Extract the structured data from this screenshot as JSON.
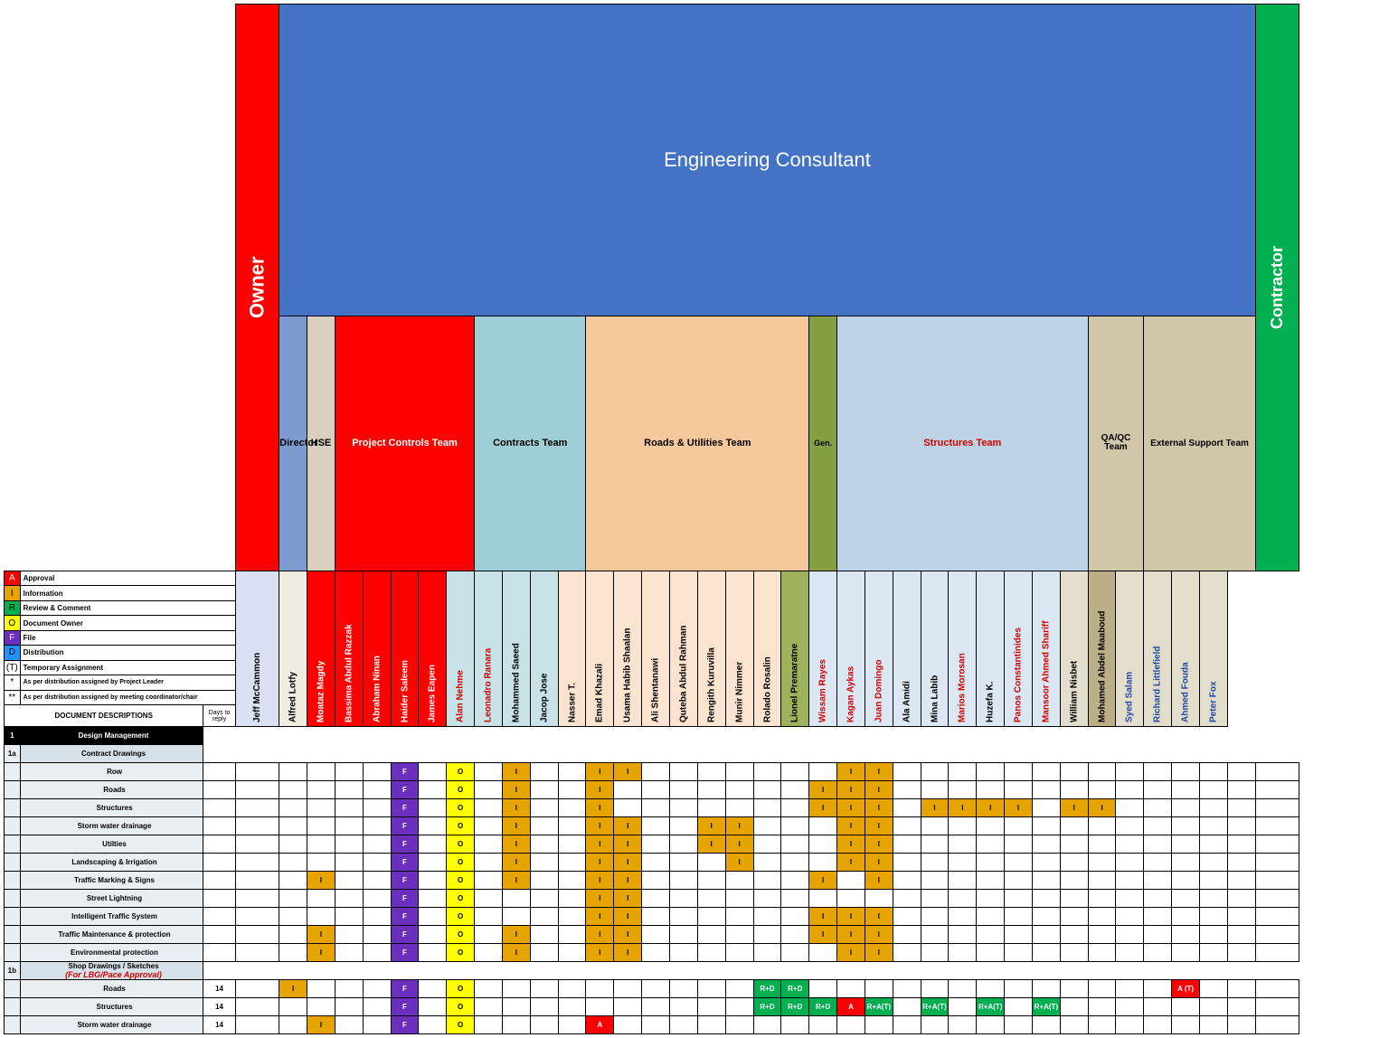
{
  "top": {
    "owner": "Owner",
    "consultant": "Engineering Consultant",
    "contractor": "Contractor"
  },
  "teams": {
    "director": "Director",
    "hse": "HSE",
    "proj": "Project Controls Team",
    "contracts": "Contracts Team",
    "roads": "Roads & Utilities Team",
    "gen": "Gen.",
    "struct": "Structures Team",
    "qaqc": "QA/QC Team",
    "ext": "External Support Team"
  },
  "people": [
    {
      "k": "p0",
      "name": "Jeff McCammon",
      "cls": "p-director"
    },
    {
      "k": "p1",
      "name": "Alfred Lotfy",
      "cls": "p-hse"
    },
    {
      "k": "p2",
      "name": "Moataz Magdy",
      "cls": "p-proj"
    },
    {
      "k": "p3",
      "name": "Bassima Abdul Razzak",
      "cls": "p-proj"
    },
    {
      "k": "p4",
      "name": "Abraham Ninan",
      "cls": "p-proj"
    },
    {
      "k": "p5",
      "name": "Haider Saleem",
      "cls": "p-proj"
    },
    {
      "k": "p6",
      "name": "James Eapen",
      "cls": "p-proj"
    },
    {
      "k": "p7",
      "name": "Alan Nehme",
      "cls": "p-contract",
      "nc": "p-red-name"
    },
    {
      "k": "p8",
      "name": "Leonadro Ranara",
      "cls": "p-contract",
      "nc": "p-red-name"
    },
    {
      "k": "p9",
      "name": "Mohammed Saeed",
      "cls": "p-contract"
    },
    {
      "k": "p10",
      "name": "Jacop Jose",
      "cls": "p-contract"
    },
    {
      "k": "p11",
      "name": "Nasser T.",
      "cls": "p-roads"
    },
    {
      "k": "p12",
      "name": "Emad Khazali",
      "cls": "p-roads"
    },
    {
      "k": "p13",
      "name": "Usama Habib Shaalan",
      "cls": "p-roads"
    },
    {
      "k": "p14",
      "name": "Ali Shentanawi",
      "cls": "p-roads"
    },
    {
      "k": "p15",
      "name": "Quteba Abdul Rahman",
      "cls": "p-roads"
    },
    {
      "k": "p16",
      "name": "Rengith Kuruvilla",
      "cls": "p-roads"
    },
    {
      "k": "p17",
      "name": "Munir Nimmer",
      "cls": "p-roads"
    },
    {
      "k": "p18",
      "name": "Rolado Rosalin",
      "cls": "p-roads"
    },
    {
      "k": "p19",
      "name": "Lionel Premaratne",
      "cls": "p-gen"
    },
    {
      "k": "p20",
      "name": "Wissam Rayes",
      "cls": "p-struct",
      "nc": "p-red-name"
    },
    {
      "k": "p21",
      "name": "Kagan Aykas",
      "cls": "p-struct",
      "nc": "p-red-name"
    },
    {
      "k": "p22",
      "name": "Juan Domingo",
      "cls": "p-struct",
      "nc": "p-red-name"
    },
    {
      "k": "p23",
      "name": "Ala Amidi",
      "cls": "p-struct"
    },
    {
      "k": "p24",
      "name": "Mina Labib",
      "cls": "p-struct"
    },
    {
      "k": "p25",
      "name": "Marios Morosan",
      "cls": "p-struct",
      "nc": "p-red-name"
    },
    {
      "k": "p26",
      "name": "Huzefa K.",
      "cls": "p-struct"
    },
    {
      "k": "p27",
      "name": "Panos Constantinides",
      "cls": "p-struct",
      "nc": "p-red-name"
    },
    {
      "k": "p28",
      "name": "Mansoor Ahmed Shariff",
      "cls": "p-struct",
      "nc": "p-red-name"
    },
    {
      "k": "p29",
      "name": "William Nisbet",
      "cls": "p-qaqc"
    },
    {
      "k": "p30",
      "name": "Mohamed Abdel Maaboud",
      "cls": "p-qaqc-dark"
    },
    {
      "k": "p31",
      "name": "Syed Salam",
      "cls": "p-ext",
      "nc": "p-blue-name"
    },
    {
      "k": "p32",
      "name": "Richard Littlefield",
      "cls": "p-ext",
      "nc": "p-blue-name"
    },
    {
      "k": "p33",
      "name": "Ahmed Fouda",
      "cls": "p-ext",
      "nc": "p-blue-name"
    },
    {
      "k": "p34",
      "name": "Peter Fox",
      "cls": "p-ext",
      "nc": "p-blue-name"
    }
  ],
  "legend": [
    {
      "c": "A",
      "t": "Approval",
      "cls": "lc-A"
    },
    {
      "c": "I",
      "t": "Information",
      "cls": "lc-I"
    },
    {
      "c": "R",
      "t": "Review & Comment",
      "cls": "lc-R"
    },
    {
      "c": "O",
      "t": "Document Owner",
      "cls": "lc-O"
    },
    {
      "c": "F",
      "t": "File",
      "cls": "lc-F"
    },
    {
      "c": "D",
      "t": "Distribution",
      "cls": "lc-D"
    },
    {
      "c": "(T)",
      "t": "Temporary Assignment",
      "cls": "lc-T"
    },
    {
      "c": "*",
      "t": "As per distribution assigned by Project Leader",
      "cls": "lc-star"
    },
    {
      "c": "**",
      "t": "As per distribution assigned by meeting coordinator/chair",
      "cls": "lc-star"
    }
  ],
  "docdesc": "DOCUMENT DESCRIPTIONS",
  "daysreply": "Days to reply",
  "sections": {
    "s1_idx": "1",
    "s1": "Design Management",
    "s1a_idx": "1a",
    "s1a": "Contract Drawings",
    "s1b_idx": "1b",
    "s1b": "Shop Drawings / Sketches",
    "s1b_sub": "(For LBG/Pace Approval)"
  },
  "rows": [
    {
      "id": "r0",
      "label": "Row",
      "cells": {
        "4": "F",
        "6": "O",
        "8": "I",
        "11": "I",
        "12": "I",
        "20": "I",
        "21": "I"
      }
    },
    {
      "id": "r1",
      "label": "Roads",
      "cells": {
        "4": "F",
        "6": "O",
        "8": "I",
        "11": "I",
        "19": "I",
        "20": "I",
        "21": "I"
      }
    },
    {
      "id": "r2",
      "label": "Structures",
      "cells": {
        "4": "F",
        "6": "O",
        "8": "I",
        "11": "I",
        "19": "I",
        "20": "I",
        "21": "I",
        "23": "I",
        "24": "I",
        "25": "I",
        "26": "I",
        "28": "I",
        "29": "I"
      }
    },
    {
      "id": "r3",
      "label": "Storm water drainage",
      "cells": {
        "4": "F",
        "6": "O",
        "8": "I",
        "11": "I",
        "12": "I",
        "15": "I",
        "16": "I",
        "20": "I",
        "21": "I"
      }
    },
    {
      "id": "r4",
      "label": "Utilties",
      "cells": {
        "4": "F",
        "6": "O",
        "8": "I",
        "11": "I",
        "12": "I",
        "15": "I",
        "16": "I",
        "20": "I",
        "21": "I"
      }
    },
    {
      "id": "r5",
      "label": "Landscaping & Irrigation",
      "cells": {
        "4": "F",
        "6": "O",
        "8": "I",
        "11": "I",
        "12": "I",
        "16": "I",
        "20": "I",
        "21": "I"
      }
    },
    {
      "id": "r6",
      "label": "Traffic Marking & Signs",
      "cells": {
        "1": "I",
        "4": "F",
        "6": "O",
        "8": "I",
        "11": "I",
        "12": "I",
        "19": "I",
        "21": "I"
      }
    },
    {
      "id": "r7",
      "label": "Street Lightning",
      "cells": {
        "4": "F",
        "6": "O",
        "11": "I",
        "12": "I"
      }
    },
    {
      "id": "r8",
      "label": "Intelligent Traffic System",
      "cells": {
        "4": "F",
        "6": "O",
        "11": "I",
        "12": "I",
        "19": "I",
        "20": "I",
        "21": "I"
      }
    },
    {
      "id": "r9",
      "label": "Traffic Maintenance & protection",
      "cells": {
        "1": "I",
        "4": "F",
        "6": "O",
        "8": "I",
        "11": "I",
        "12": "I",
        "19": "I",
        "20": "I",
        "21": "I"
      }
    },
    {
      "id": "r10",
      "label": "Environmental protection",
      "cells": {
        "1": "I",
        "4": "F",
        "6": "O",
        "8": "I",
        "11": "I",
        "12": "I",
        "20": "I",
        "21": "I"
      }
    }
  ],
  "rows2": [
    {
      "id": "b0",
      "label": "Roads",
      "days": "14",
      "cells": {
        "0": "I",
        "4": "F",
        "6": "O",
        "17": "RD",
        "18": "RD",
        "32": "AT"
      }
    },
    {
      "id": "b1",
      "label": "Structures",
      "days": "14",
      "cells": {
        "4": "F",
        "6": "O",
        "17": "RD",
        "18": "RD",
        "19": "RD",
        "20": "A",
        "21": "RAT",
        "23": "RAT",
        "25": "RAT",
        "27": "RAT"
      }
    },
    {
      "id": "b2",
      "label": "Storm water drainage",
      "days": "14",
      "cells": {
        "1": "I",
        "4": "F",
        "6": "O",
        "11": "A"
      }
    }
  ],
  "codes": {
    "F": {
      "txt": "F",
      "cls": "c-F"
    },
    "O": {
      "txt": "O",
      "cls": "c-O"
    },
    "I": {
      "txt": "I",
      "cls": "c-I"
    },
    "A": {
      "txt": "A",
      "cls": "c-A"
    },
    "AT": {
      "txt": "A (T)",
      "cls": "c-AT"
    },
    "RD": {
      "txt": "R+D",
      "cls": "c-RD"
    },
    "RAT": {
      "txt": "R+A(T)",
      "cls": "c-RAT"
    }
  }
}
